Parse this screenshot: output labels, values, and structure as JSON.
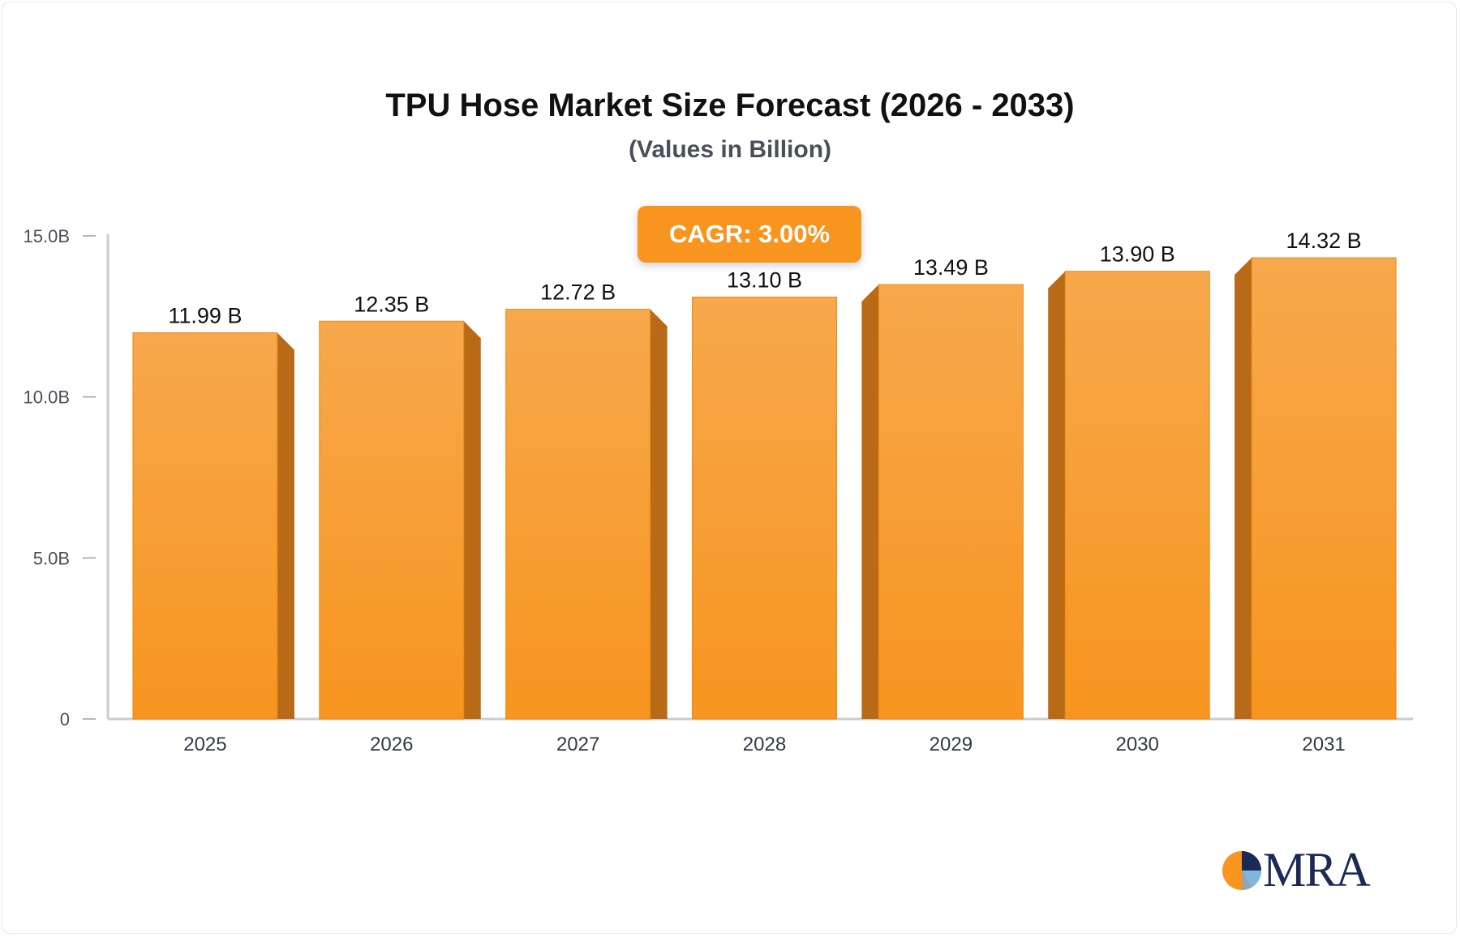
{
  "title": "TPU Hose Market Size Forecast (2026 - 2033)",
  "subtitle": "(Values in Billion)",
  "cagr_label": "CAGR: 3.00%",
  "logo_text": "MRA",
  "colors": {
    "bar_front": "#f7951f",
    "bar_front_light": "#f7a84c",
    "bar_side": "#b86a16",
    "cagr_bg": "#f7951f",
    "axis": "#cccccc",
    "logo_navy": "#1b2a55"
  },
  "chart_data": {
    "type": "bar",
    "title": "TPU Hose Market Size Forecast (2026 - 2033)",
    "subtitle": "(Values in Billion)",
    "categories": [
      "2025",
      "2026",
      "2027",
      "2028",
      "2029",
      "2030",
      "2031"
    ],
    "values": [
      11.99,
      12.35,
      12.72,
      13.1,
      13.49,
      13.9,
      14.32
    ],
    "data_labels": [
      "11.99 B",
      "12.35 B",
      "12.72 B",
      "13.10 B",
      "13.49 B",
      "13.90 B",
      "14.32 B"
    ],
    "y_ticks": [
      {
        "value": 0,
        "label": "0"
      },
      {
        "value": 5,
        "label": "5.0B"
      },
      {
        "value": 10,
        "label": "10.0B"
      },
      {
        "value": 15,
        "label": "15.0B"
      }
    ],
    "ylim": [
      0,
      15
    ],
    "xlabel": "",
    "ylabel": "",
    "grid": false,
    "legend": "none"
  }
}
